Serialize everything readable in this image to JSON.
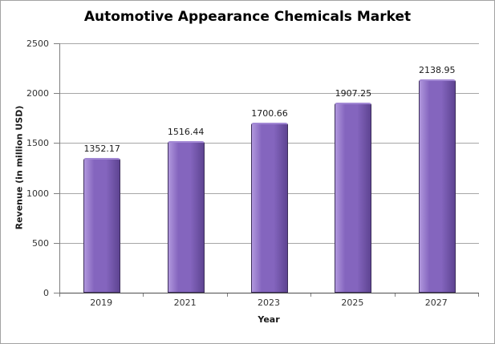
{
  "window": {
    "background": "#ffffff",
    "border_color": "#a3a3a3"
  },
  "chart_data": {
    "type": "bar",
    "title": "Automotive Appearance Chemicals Market",
    "categories": [
      "2019",
      "2021",
      "2023",
      "2025",
      "2027"
    ],
    "values": [
      1352.17,
      1516.44,
      1700.66,
      1907.25,
      2138.95
    ],
    "value_labels": [
      "1352.17",
      "1516.44",
      "1700.66",
      "1907.25",
      "2138.95"
    ],
    "xlabel": "Year",
    "ylabel": "Revenue (in million USD)",
    "ylim": [
      0,
      2500
    ],
    "ytick_step": 500,
    "yticks": [
      0,
      500,
      1000,
      1500,
      2000,
      2500
    ],
    "grid": true,
    "legend_position": "none",
    "colors": {
      "bar_fill": "#8465be",
      "bar_highlight": "#b097dd",
      "bar_shadow": "#5e4492",
      "bar_border": "#3e2f5b",
      "bar_cap": "#a288d4",
      "gridline": "#a6a6a6",
      "axis": "#7f7f7f",
      "text": "#1a1a1a"
    }
  }
}
